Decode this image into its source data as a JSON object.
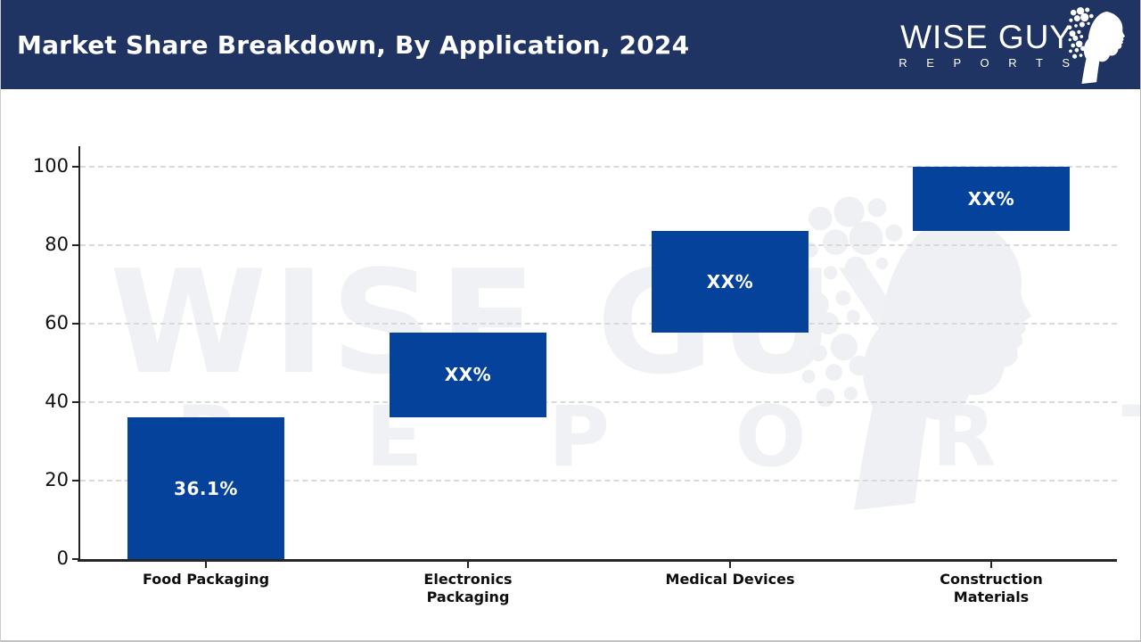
{
  "header": {
    "title": "Market Share Breakdown, By Application, 2024",
    "bg_color": "#1f3462",
    "logo": {
      "line1": "WISE GUY",
      "line2": "R E P O R T S",
      "head_icon": "dotted-head-profile"
    }
  },
  "watermark": {
    "line1": "WISE GUY",
    "line2": "R E P O R T S",
    "head_icon": "dotted-head-profile",
    "color": "#f0f1f4"
  },
  "chart_data": {
    "type": "bar",
    "subtype": "waterfall",
    "title": "",
    "xlabel": "",
    "ylabel": "",
    "categories": [
      [
        "Food Packaging"
      ],
      [
        "Electronics",
        "Packaging"
      ],
      [
        "Medical Devices"
      ],
      [
        "Construction",
        "Materials"
      ]
    ],
    "series": [
      {
        "name": "Market Share",
        "segments": [
          {
            "category": "Food Packaging",
            "start": 0,
            "end": 36.1,
            "label": "36.1%"
          },
          {
            "category": "Electronics Packaging",
            "start": 36.1,
            "end": 57.8,
            "label": "XX%"
          },
          {
            "category": "Medical Devices",
            "start": 57.8,
            "end": 83.6,
            "label": "XX%"
          },
          {
            "category": "Construction Materials",
            "start": 83.6,
            "end": 100,
            "label": "XX%"
          }
        ]
      }
    ],
    "ylim": [
      0,
      100
    ],
    "yticks": [
      0,
      20,
      40,
      60,
      80,
      100
    ],
    "grid": "dashed-horizontal",
    "legend": "none",
    "bar_color": "#05429b",
    "bar_label_color": "#ffffff",
    "gridline_color": "#d9d9d9",
    "axis_color": "#222222"
  }
}
